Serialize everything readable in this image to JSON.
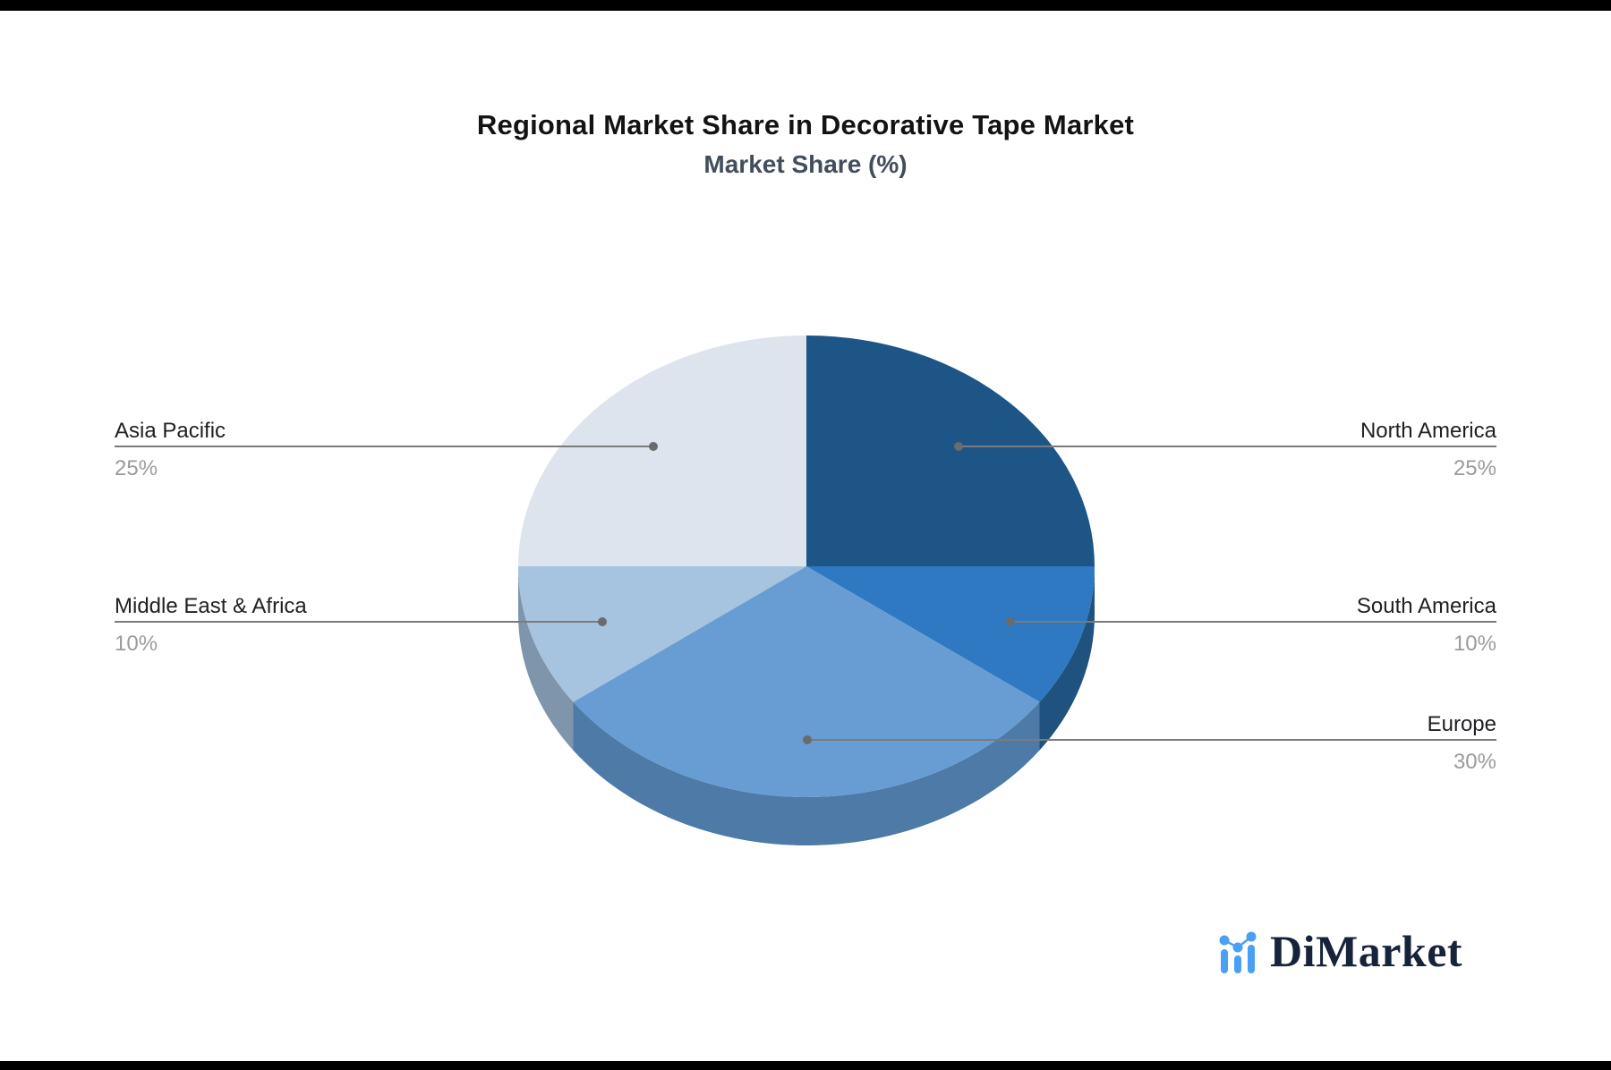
{
  "chart_data": {
    "type": "pie",
    "title": "Regional Market Share in Decorative Tape Market",
    "subtitle": "Market Share (%)",
    "unit": "%",
    "effect_3d": true,
    "direction": "clockwise",
    "start_angle": "12-oclock",
    "labels_layout": "callout-lines-left-right",
    "series": [
      {
        "label": "North America",
        "value": 25,
        "pct_label": "25%",
        "color": "#1d5586",
        "side_color": "#1f527f",
        "callout_side": "right"
      },
      {
        "label": "South America",
        "value": 10,
        "pct_label": "10%",
        "color": "#2e79c1",
        "side_color": "#1f527f",
        "callout_side": "right"
      },
      {
        "label": "Europe",
        "value": 30,
        "pct_label": "30%",
        "color": "#689dd3",
        "side_color": "#4d7aa6",
        "callout_side": "right"
      },
      {
        "label": "Middle East & Africa",
        "value": 10,
        "pct_label": "10%",
        "color": "#a6c3df",
        "side_color": "#7e95ab",
        "callout_side": "left"
      },
      {
        "label": "Asia Pacific",
        "value": 25,
        "pct_label": "25%",
        "color": "#dde4ee",
        "side_color": "#a9b5c6",
        "callout_side": "left"
      }
    ],
    "label_text_color": "#202124",
    "value_text_color": "#9b9b9b",
    "leader_line_color": "#7b7b7b"
  },
  "branding": {
    "logo_text": "DiMarket",
    "logo_icon": "bar-chart-trend-icon",
    "logo_text_color": "#16233b",
    "logo_icon_color": "#4aa0f5"
  }
}
